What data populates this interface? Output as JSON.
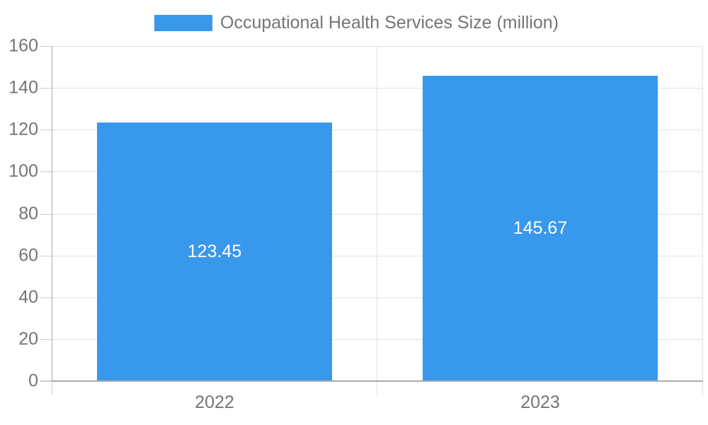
{
  "chart_data": {
    "type": "bar",
    "title": "",
    "legend_position": "top",
    "grid": true,
    "categories": [
      "2022",
      "2023"
    ],
    "series": [
      {
        "name": "Occupational Health Services Size (million)",
        "values": [
          123.45,
          145.67
        ],
        "value_labels": [
          "123.45",
          "145.67"
        ]
      }
    ],
    "ylim": [
      0,
      160
    ],
    "yticks": [
      0,
      20,
      40,
      60,
      80,
      100,
      120,
      140,
      160
    ],
    "ytick_labels": [
      "0",
      "20",
      "40",
      "60",
      "80",
      "100",
      "120",
      "140",
      "160"
    ],
    "xlabel": "",
    "ylabel": "",
    "colors": {
      "bar": "#3898EC",
      "label_text": "#757575",
      "value_text": "#FFFFFF",
      "gridline": "#E3E3E3",
      "tick": "#CCCCCC",
      "axis": "#ABABAB",
      "background": "#FFFFFF"
    }
  }
}
